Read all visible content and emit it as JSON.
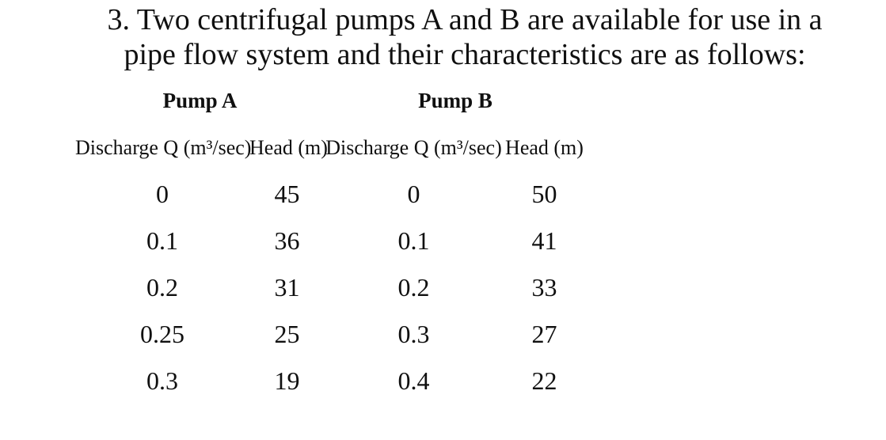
{
  "page": {
    "background_color": "#ffffff",
    "text_color": "#101010"
  },
  "problem": {
    "number": "3.",
    "title_lines": [
      "3. Two centrifugal pumps A and B are available for use in a",
      "pipe flow system and their characteristics are as follows:"
    ]
  },
  "pump_table": {
    "group_headers": [
      "Pump A",
      "Pump B"
    ],
    "column_headers": [
      "Discharge Q (m³/sec)",
      "Head (m)",
      "Discharge Q (m³/sec)",
      "Head (m)"
    ],
    "rows": [
      [
        "0",
        "45",
        "0",
        "50"
      ],
      [
        "0.1",
        "36",
        "0.1",
        "41"
      ],
      [
        "0.2",
        "31",
        "0.2",
        "33"
      ],
      [
        "0.25",
        "25",
        "0.3",
        "27"
      ],
      [
        "0.3",
        "19",
        "0.4",
        "22"
      ]
    ]
  }
}
